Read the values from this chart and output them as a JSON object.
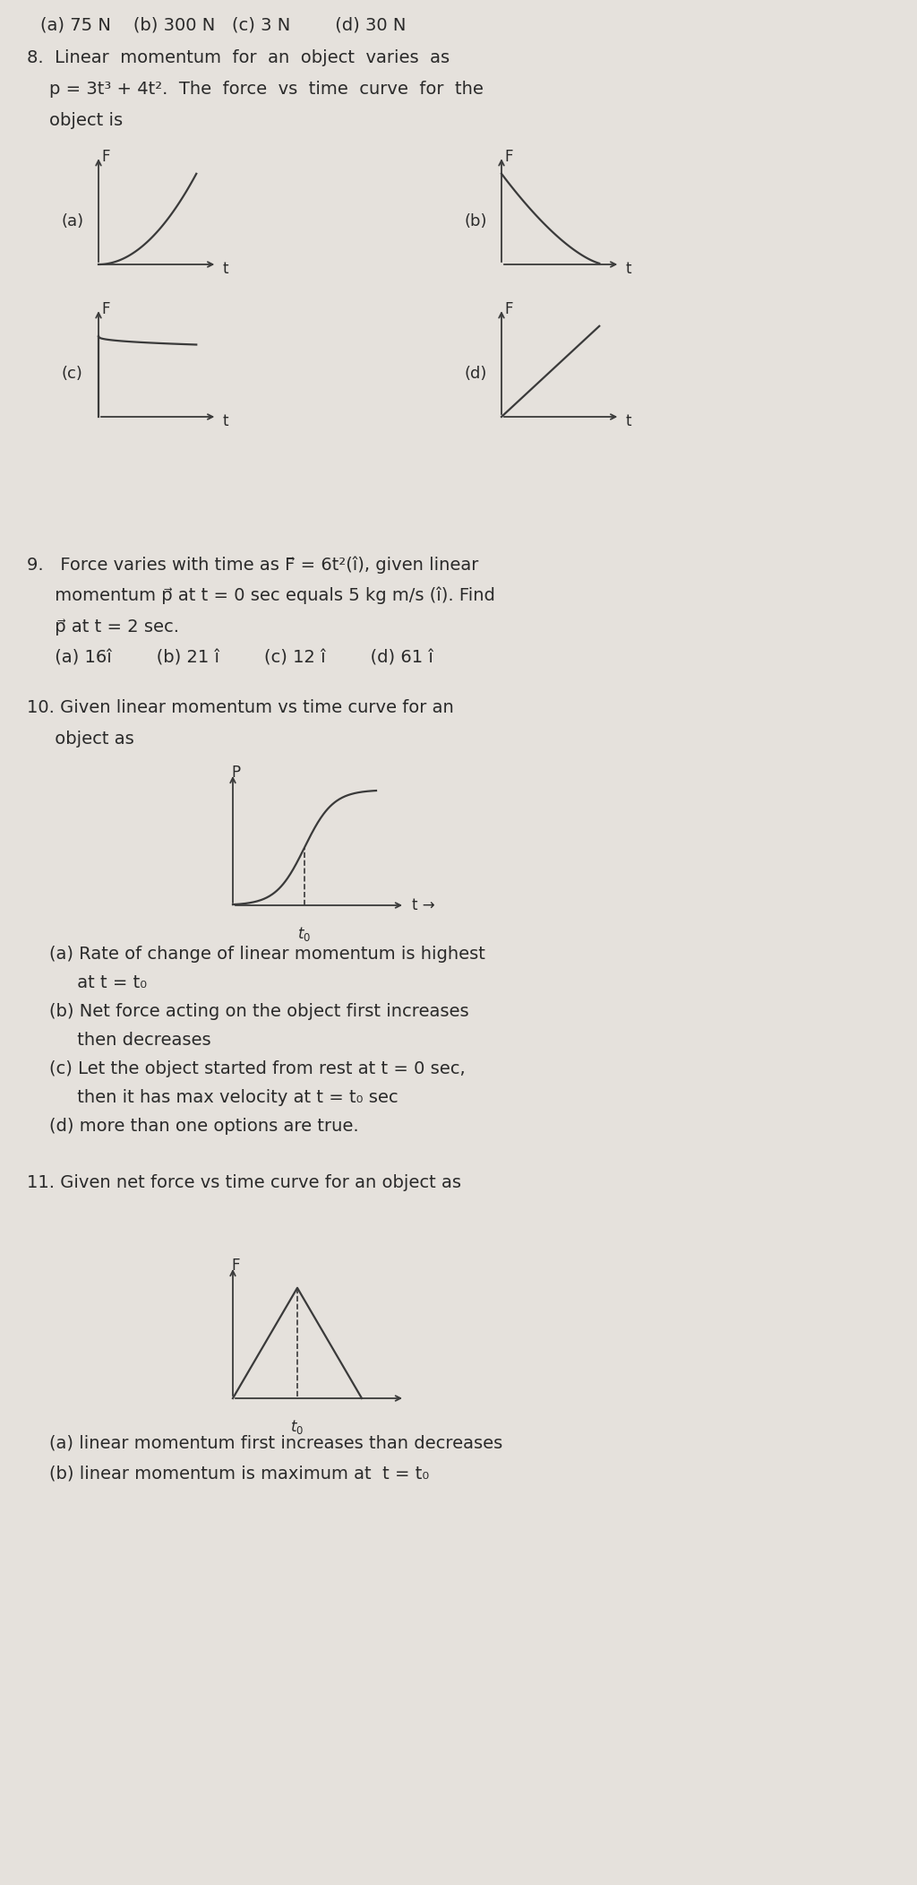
{
  "bg_color": "#e5e1dc",
  "text_color": "#2a2a2a",
  "line_color": "#3a3a3a",
  "q1_text": "(a) 75 N    (b) 300 N   (c) 3 N        (d) 30 N",
  "q8_line1": "8.  Linear  momentum  for  an  object  varies  as",
  "q8_line2": "    p = 3t³ + 4t².  The  force  vs  time  curve  for  the",
  "q8_line3": "    object is",
  "q9_line1": "9.   Force varies with time as F⃗ = 6t²(î), given linear",
  "q9_line2": "     momentum p⃗ at t = 0 sec equals 5 kg m/s (î). Find",
  "q9_line3": "     p⃗ at t = 2 sec.",
  "q9_opts": "     (a) 16î        (b) 21 î        (c) 12 î        (d) 61 î",
  "q10_line1": "10. Given linear momentum vs time curve for an",
  "q10_line2": "     object as",
  "q10_a1": "    (a) Rate of change of linear momentum is highest",
  "q10_a2": "         at t = t₀",
  "q10_b1": "    (b) Net force acting on the object first increases",
  "q10_b2": "         then decreases",
  "q10_c1": "    (c) Let the object started from rest at t = 0 sec,",
  "q10_c2": "         then it has max velocity at t = t₀ sec",
  "q10_d": "    (d) more than one options are true.",
  "q11_line1": "11. Given net force vs time curve for an object as",
  "q11_a": "    (a) linear momentum first increases than decreases",
  "q11_b": "    (b) linear momentum is maximum at  t = t₀"
}
